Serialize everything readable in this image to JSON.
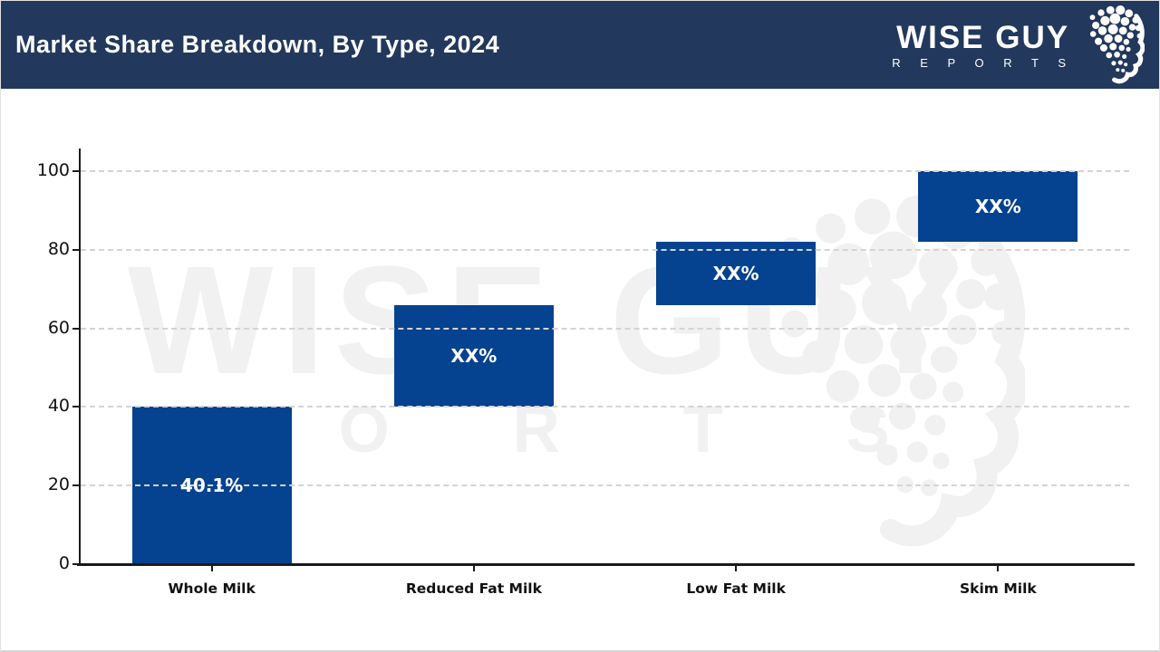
{
  "header": {
    "title": "Market Share Breakdown, By Type, 2024",
    "bg_color": "#22385C",
    "logo": {
      "line1": "WISE GUY",
      "line2": "R E P O R T S"
    }
  },
  "watermark": {
    "line1": "WISE GUY",
    "line2": "P O R T S"
  },
  "chart_data": {
    "type": "bar",
    "subtype": "waterfall",
    "title": "Market Share Breakdown, By Type, 2024",
    "categories": [
      "Whole Milk",
      "Reduced Fat Milk",
      "Low Fat Milk",
      "Skim Milk"
    ],
    "segments": [
      {
        "category": "Whole Milk",
        "label": "40.1%",
        "start": 0,
        "end": 40.1
      },
      {
        "category": "Reduced Fat Milk",
        "label": "XX%",
        "start": 40.1,
        "end": 66
      },
      {
        "category": "Low Fat Milk",
        "label": "XX%",
        "start": 66,
        "end": 82
      },
      {
        "category": "Skim Milk",
        "label": "XX%",
        "start": 82,
        "end": 100
      }
    ],
    "xlabel": "",
    "ylabel": "",
    "ylim": [
      0,
      100
    ],
    "yticks": [
      0,
      20,
      40,
      60,
      80,
      100
    ],
    "grid": "horizontal-dashed",
    "legend": "none",
    "bar_color": "#05428F",
    "bar_label_color": "#ffffff",
    "axis_color": "#1a1a1a",
    "gridline_color": "#d4d4d4"
  }
}
